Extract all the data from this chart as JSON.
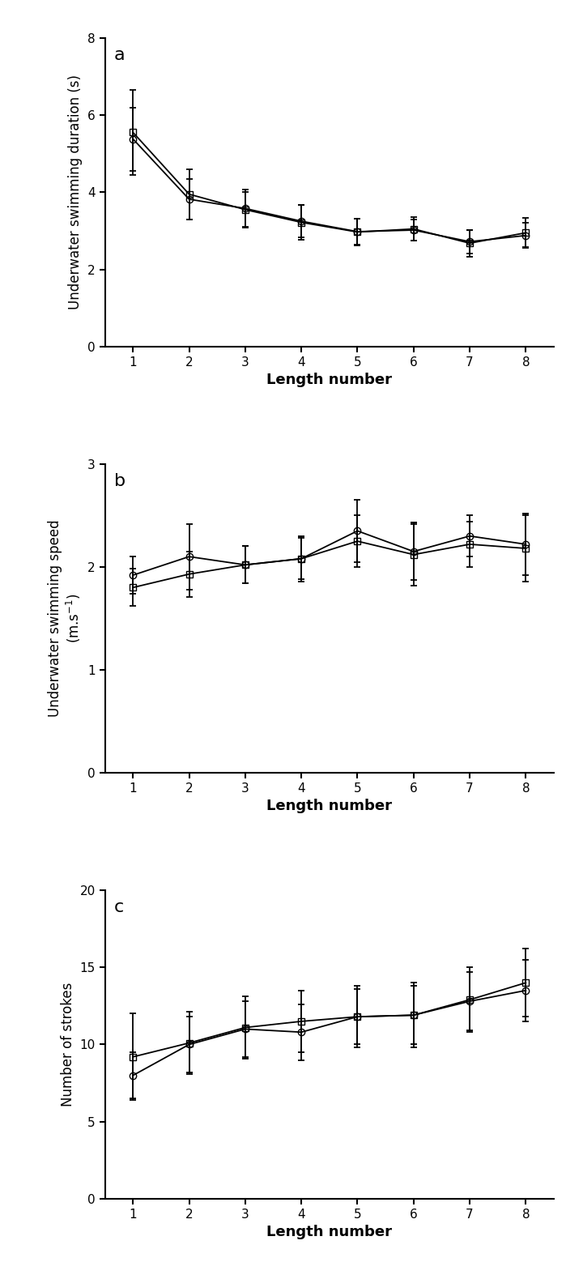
{
  "x": [
    1,
    2,
    3,
    4,
    5,
    6,
    7,
    8
  ],
  "panel_a": {
    "label": "a",
    "ylabel": "Underwater swimming duration (s)",
    "ylim": [
      0,
      8
    ],
    "yticks": [
      0,
      2,
      4,
      6,
      8
    ],
    "series1": {
      "y": [
        5.55,
        3.95,
        3.55,
        3.22,
        2.97,
        3.05,
        2.68,
        2.95
      ],
      "yerr": [
        1.1,
        0.65,
        0.45,
        0.45,
        0.35,
        0.3,
        0.35,
        0.38
      ],
      "marker": "s",
      "fillstyle": "none"
    },
    "series2": {
      "y": [
        5.38,
        3.82,
        3.58,
        3.25,
        2.98,
        3.02,
        2.72,
        2.88
      ],
      "yerr": [
        0.82,
        0.52,
        0.5,
        0.42,
        0.33,
        0.28,
        0.3,
        0.33
      ],
      "marker": "o",
      "fillstyle": "none"
    }
  },
  "panel_b": {
    "label": "b",
    "ylabel_line1": "Underwater swimming speed",
    "ylabel_line2": "(m.s⁻¹)",
    "ylim": [
      0,
      3
    ],
    "yticks": [
      0,
      1,
      2,
      3
    ],
    "series1": {
      "y": [
        1.8,
        1.93,
        2.02,
        2.08,
        2.25,
        2.12,
        2.22,
        2.18
      ],
      "yerr": [
        0.18,
        0.22,
        0.18,
        0.2,
        0.25,
        0.3,
        0.22,
        0.32
      ],
      "marker": "s",
      "fillstyle": "none"
    },
    "series2": {
      "y": [
        1.92,
        2.1,
        2.02,
        2.08,
        2.35,
        2.15,
        2.3,
        2.22
      ],
      "yerr": [
        0.18,
        0.32,
        0.18,
        0.22,
        0.3,
        0.28,
        0.2,
        0.3
      ],
      "marker": "o",
      "fillstyle": "none"
    }
  },
  "panel_c": {
    "label": "c",
    "ylabel": "Number of strokes",
    "ylim": [
      0,
      20
    ],
    "yticks": [
      0,
      5,
      10,
      15,
      20
    ],
    "series1": {
      "y": [
        9.2,
        10.1,
        11.1,
        11.5,
        11.8,
        11.9,
        12.9,
        14.0
      ],
      "yerr": [
        2.8,
        2.0,
        2.0,
        2.0,
        2.0,
        2.1,
        2.1,
        2.2
      ],
      "marker": "s",
      "fillstyle": "none"
    },
    "series2": {
      "y": [
        8.0,
        10.0,
        11.0,
        10.8,
        11.8,
        11.9,
        12.8,
        13.5
      ],
      "yerr": [
        1.5,
        1.8,
        1.8,
        1.8,
        1.8,
        1.9,
        1.9,
        2.0
      ],
      "marker": "o",
      "fillstyle": "none"
    }
  },
  "xlabel": "Length number",
  "line_color": "#000000",
  "background_color": "#ffffff",
  "capsize": 3,
  "markersize": 6,
  "linewidth": 1.3,
  "elinewidth": 1.3,
  "tick_fontsize": 11,
  "label_fontsize": 12,
  "panel_label_fontsize": 16
}
